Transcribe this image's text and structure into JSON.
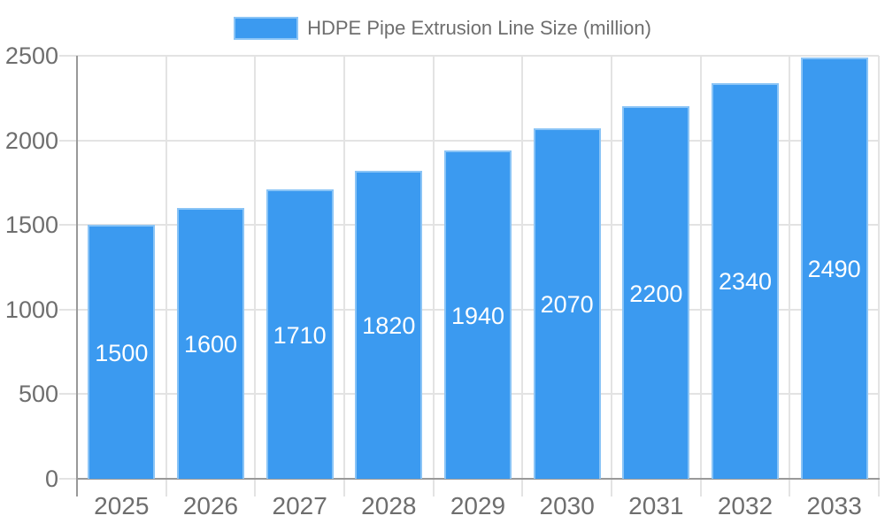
{
  "chart_data": {
    "type": "bar",
    "title": "HDPE Pipe Extrusion Line Size (million)",
    "series_name": "HDPE Pipe Extrusion Line Size (million)",
    "categories": [
      "2025",
      "2026",
      "2027",
      "2028",
      "2029",
      "2030",
      "2031",
      "2032",
      "2033"
    ],
    "values": [
      1500,
      1600,
      1710,
      1820,
      1940,
      2070,
      2200,
      2340,
      2490
    ],
    "value_labels": [
      "1500",
      "1600",
      "1710",
      "1820",
      "1940",
      "2070",
      "2200",
      "2340",
      "2490"
    ],
    "value_label_position": "inside-center",
    "xlabel": "",
    "ylabel": "",
    "ylim": [
      0,
      2500
    ],
    "yticks": [
      0,
      500,
      1000,
      1500,
      2000,
      2500
    ],
    "ytick_labels": [
      "0",
      "500",
      "1000",
      "1500",
      "2000",
      "2500"
    ],
    "grid": true,
    "legend_position": "top",
    "colors": {
      "bar": "#3B9AF0",
      "bar_border": "#8AC4F6",
      "value_text": "#FFFFFF",
      "grid": "#E3E3E3",
      "axis": "#999999",
      "tick_text": "#6E6E6E",
      "legend_text": "#6E6E6E",
      "background": "#FFFFFF"
    }
  }
}
